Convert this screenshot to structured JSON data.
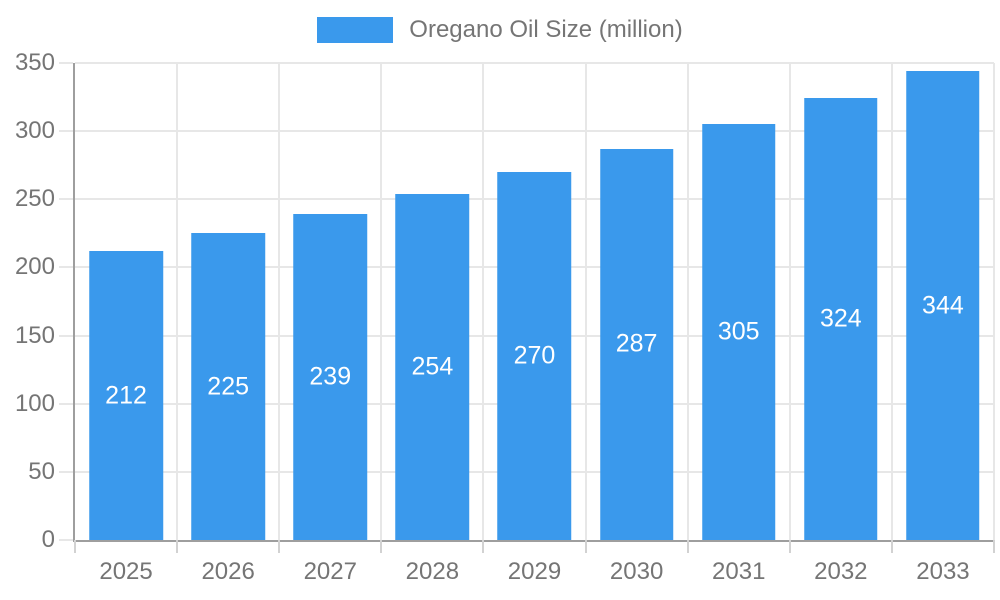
{
  "chart_data": {
    "type": "bar",
    "title": "Oregano Oil Size (million)",
    "categories": [
      "2025",
      "2026",
      "2027",
      "2028",
      "2029",
      "2030",
      "2031",
      "2032",
      "2033"
    ],
    "values": [
      212,
      225,
      239,
      254,
      270,
      287,
      305,
      324,
      344
    ],
    "xlabel": "",
    "ylabel": "",
    "ylim": [
      0,
      350
    ],
    "ytick_step": 50,
    "yticks": [
      0,
      50,
      100,
      150,
      200,
      250,
      300,
      350
    ],
    "grid": true,
    "legend_position": "top-center",
    "value_labels": "inside-middle",
    "colors": {
      "bar": "#3A99EC",
      "value_label": "#FFFFFF",
      "axis_text": "#757575",
      "axis_line": "#9E9E9E",
      "gridline": "#E7E7E7",
      "tick": "#D2D2D2",
      "background": "#FFFFFF"
    }
  }
}
